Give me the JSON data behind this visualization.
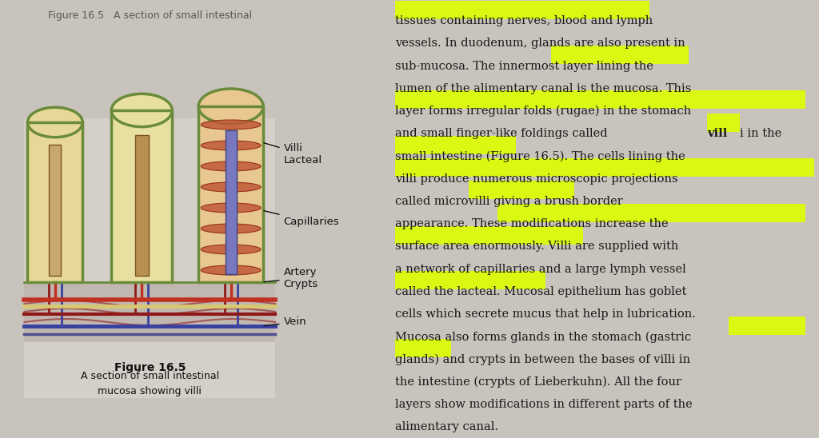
{
  "bg_color": "#c8c3bc",
  "fig_width": 10.24,
  "fig_height": 5.48,
  "highlight_color": "#e8ff00",
  "text_color": "#1a1a1a",
  "lines": [
    {
      "text": "tissues containing nerves, blood and lymph",
      "hl": [
        [
          0,
          26
        ]
      ],
      "bold": []
    },
    {
      "text": "vessels. In duodenum, glands are also present in",
      "hl": [],
      "bold": []
    },
    {
      "text": "sub-mucosa. The innermost layer lining the",
      "hl": [
        [
          16,
          30
        ]
      ],
      "bold": []
    },
    {
      "text": "lumen of the alimentary canal is the mucosa. This",
      "hl": [],
      "bold": []
    },
    {
      "text": "layer forms irregular folds (rugae) in the stomach",
      "hl": [
        [
          0,
          50
        ]
      ],
      "bold": []
    },
    {
      "text": "and small finger-like foldings called villi in the",
      "hl": [
        [
          38,
          42
        ]
      ],
      "bold": [
        [
          38,
          42
        ]
      ]
    },
    {
      "text": "small intestine (Figure 16.5). The cells lining the",
      "hl": [
        [
          0,
          15
        ]
      ],
      "bold": []
    },
    {
      "text": "villi produce numerous microscopic projections",
      "hl": [
        [
          0,
          47
        ]
      ],
      "bold": []
    },
    {
      "text": "called microvilli giving a brush border",
      "hl": [
        [
          7,
          17
        ]
      ],
      "bold": []
    },
    {
      "text": "appearance. These modifications increase the",
      "hl": [
        [
          11,
          44
        ]
      ],
      "bold": []
    },
    {
      "text": "surface area enormously. Villi are supplied with",
      "hl": [
        [
          0,
          22
        ]
      ],
      "bold": []
    },
    {
      "text": "a network of capillaries and a large lymph vessel",
      "hl": [],
      "bold": []
    },
    {
      "text": "called the lacteal. Mucosal epithelium has goblet",
      "hl": [
        [
          0,
          18
        ]
      ],
      "bold": []
    },
    {
      "text": "cells which secrete mucus that help in lubrication.",
      "hl": [],
      "bold": []
    },
    {
      "text": "Mucosa also forms glands in the stomach (gastric",
      "hl": [
        [
          39,
          48
        ]
      ],
      "bold": []
    },
    {
      "text": "glands) and crypts in between the bases of villi in",
      "hl": [
        [
          0,
          7
        ]
      ],
      "bold": []
    },
    {
      "text": "the intestine (crypts of Lieberkuhn). All the four",
      "hl": [],
      "bold": []
    },
    {
      "text": "layers show modifications in different parts of the",
      "hl": [],
      "bold": []
    },
    {
      "text": "alimentary canal.",
      "hl": [],
      "bold": []
    }
  ]
}
